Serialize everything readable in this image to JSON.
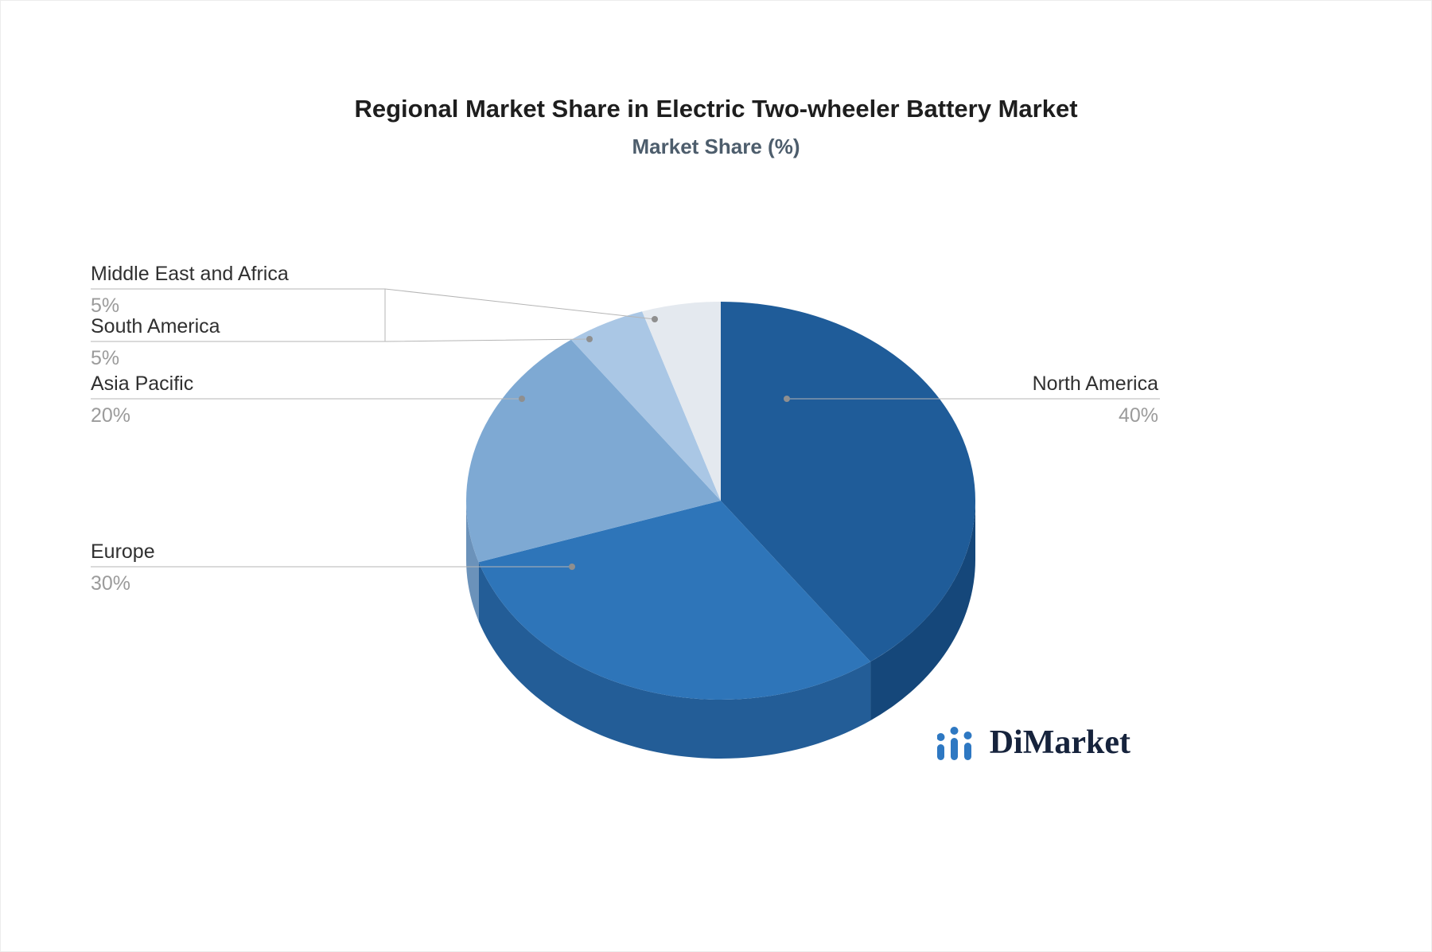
{
  "chart_data": {
    "type": "pie",
    "title": "Regional Market Share in Electric Two-wheeler Battery Market",
    "subtitle": "Market Share (%)",
    "unit": "%",
    "direction": "clockwise",
    "start_angle_deg": 0,
    "legend": "none",
    "connector_color": "#b5b5b5",
    "connector_dot_color": "#8f8f8f",
    "slices": [
      {
        "label": "North America",
        "value": 40,
        "value_label": "40%",
        "color": "#1f5c99",
        "side_color": "#15477a"
      },
      {
        "label": "Europe",
        "value": 30,
        "value_label": "30%",
        "color": "#2e75b9",
        "side_color": "#235d97"
      },
      {
        "label": "Asia Pacific",
        "value": 20,
        "value_label": "20%",
        "color": "#7ea9d3",
        "side_color": "#6b92ba"
      },
      {
        "label": "South America",
        "value": 5,
        "value_label": "5%",
        "color": "#aac7e5",
        "side_color": "#92afcc"
      },
      {
        "label": "Middle East and Africa",
        "value": 5,
        "value_label": "5%",
        "color": "#e4e9ef",
        "side_color": "#c7cfd9"
      }
    ]
  },
  "logo": {
    "text": "DiMarket",
    "icon": "bar-chart-icon",
    "icon_color": "#2e78c2",
    "text_color": "#16233c"
  }
}
